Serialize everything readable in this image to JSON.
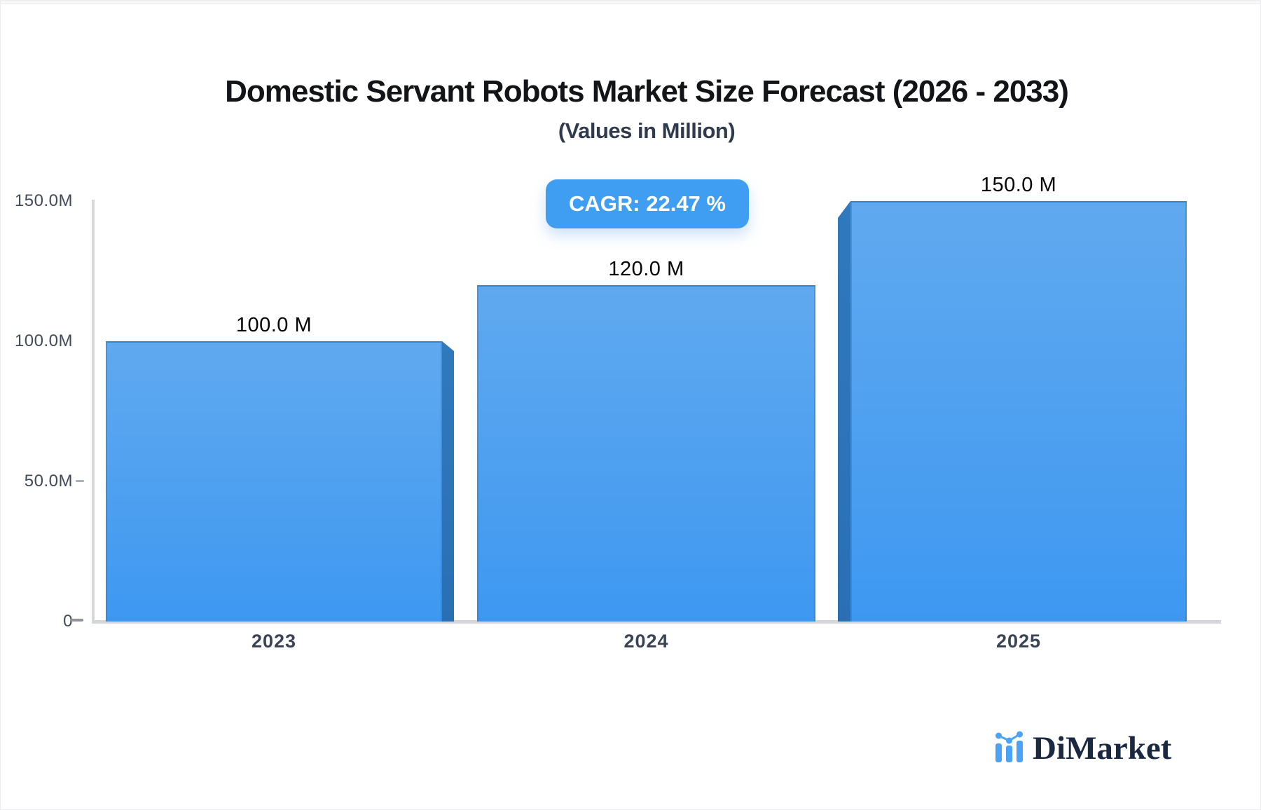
{
  "page": {
    "title": "Domestic Servant Robots Market Size Forecast (2026 - 2033)",
    "subtitle": "(Values in Million)",
    "cagr_badge": "CAGR: 22.47 %"
  },
  "chart_data": {
    "type": "bar",
    "title": "Domestic Servant Robots Market Size Forecast (2026 - 2033)",
    "subtitle": "(Values in Million)",
    "unit": "Million",
    "cagr_percent": 22.47,
    "categories": [
      "2023",
      "2024",
      "2025"
    ],
    "values": [
      100.0,
      120.0,
      150.0
    ],
    "value_labels": [
      "100.0 M",
      "120.0 M",
      "150.0 M"
    ],
    "y_ticks": [
      {
        "label": "150.0M",
        "value": 150
      },
      {
        "label": "100.0M",
        "value": 100
      },
      {
        "label": "50.0M",
        "value": 50
      },
      {
        "label": "0",
        "value": 0
      }
    ],
    "ylim": [
      0,
      150
    ],
    "grid": false,
    "legend": "none",
    "xlabel": "",
    "ylabel": ""
  },
  "colors": {
    "bar_gradient_top": "#60a9ef",
    "bar_gradient_bottom": "#3e98f1",
    "bar_3d_side": "#2d74b8",
    "badge_background": "#3f9ef2",
    "logo_blue": "#4aa3f7",
    "logo_navy": "#1a2840"
  },
  "logo": {
    "text": "DiMarket",
    "icon": "mini-bar-chart-icon"
  }
}
